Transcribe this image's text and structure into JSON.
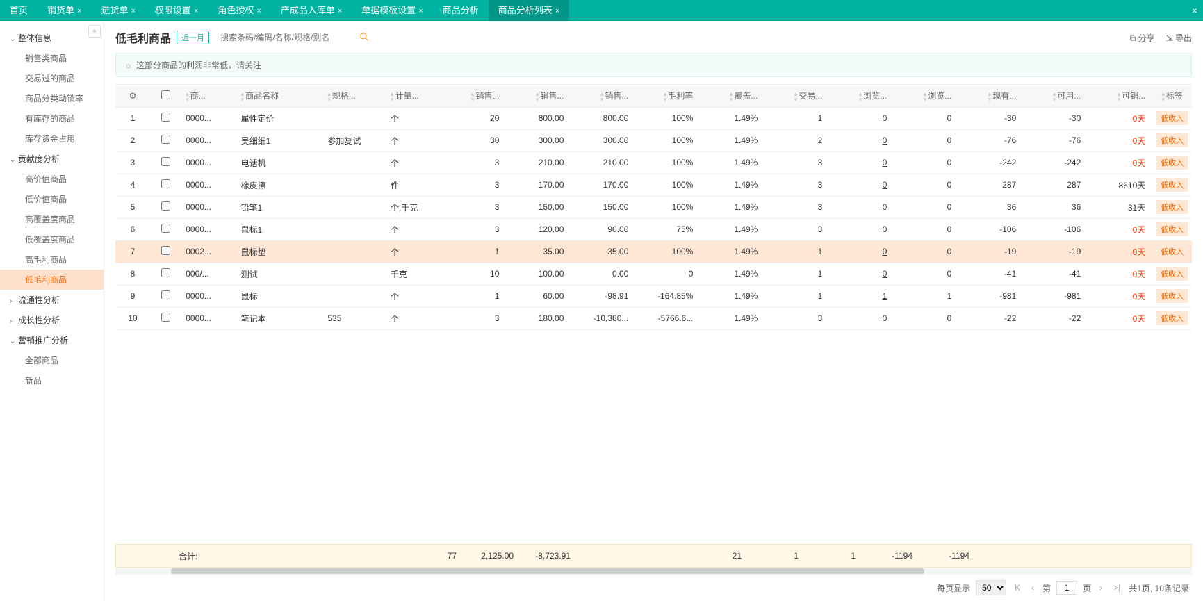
{
  "colors": {
    "primary": "#00b3a1",
    "primaryDark": "#009688",
    "accent": "#ff6600",
    "tagBg": "#ffe9d6",
    "red": "#ff3300"
  },
  "tabs": [
    {
      "label": "首页",
      "closable": false,
      "active": false
    },
    {
      "label": "销货单",
      "closable": true,
      "active": false
    },
    {
      "label": "进货单",
      "closable": true,
      "active": false
    },
    {
      "label": "权限设置",
      "closable": true,
      "active": false
    },
    {
      "label": "角色授权",
      "closable": true,
      "active": false
    },
    {
      "label": "产成品入库单",
      "closable": true,
      "active": false
    },
    {
      "label": "单据模板设置",
      "closable": true,
      "active": false
    },
    {
      "label": "商品分析",
      "closable": false,
      "active": false
    },
    {
      "label": "商品分析列表",
      "closable": true,
      "active": true
    }
  ],
  "sidebar": [
    {
      "title": "整体信息",
      "expanded": true,
      "items": [
        {
          "label": "销售类商品"
        },
        {
          "label": "交易过的商品"
        },
        {
          "label": "商品分类动销率"
        },
        {
          "label": "有库存的商品"
        },
        {
          "label": "库存资金占用"
        }
      ]
    },
    {
      "title": "贡献度分析",
      "expanded": true,
      "items": [
        {
          "label": "高价值商品"
        },
        {
          "label": "低价值商品"
        },
        {
          "label": "高覆盖度商品"
        },
        {
          "label": "低覆盖度商品"
        },
        {
          "label": "高毛利商品"
        },
        {
          "label": "低毛利商品",
          "active": true
        }
      ]
    },
    {
      "title": "流通性分析",
      "expanded": false,
      "items": []
    },
    {
      "title": "成长性分析",
      "expanded": false,
      "items": []
    },
    {
      "title": "营销推广分析",
      "expanded": true,
      "items": [
        {
          "label": "全部商品"
        },
        {
          "label": "新品"
        }
      ]
    }
  ],
  "header": {
    "title": "低毛利商品",
    "period": "近一月",
    "search_placeholder": "搜索条码/编码/名称/规格/别名",
    "share": "分享",
    "export": "导出"
  },
  "banner": "这部分商品的利润非常低，请关注",
  "columns": [
    "",
    "",
    "商...",
    "商品名称",
    "规格...",
    "计量...",
    "销售...",
    "销售...",
    "销售...",
    "毛利率",
    "覆盖...",
    "交易...",
    "浏览...",
    "浏览...",
    "现有...",
    "可用...",
    "可销...",
    "标签"
  ],
  "col_align": [
    "center",
    "center",
    "left",
    "left",
    "left",
    "left",
    "num",
    "num",
    "num",
    "num",
    "num",
    "num",
    "num",
    "num",
    "num",
    "num",
    "num",
    "center"
  ],
  "rows": [
    {
      "n": 1,
      "code": "0000...",
      "name": "属性定价",
      "spec": "",
      "unit": "个",
      "q": "20",
      "amt1": "800.00",
      "amt2": "800.00",
      "gm": "100%",
      "cov": "1.49%",
      "trx": "1",
      "view1": "0",
      "view2": "0",
      "stock": "-30",
      "avail": "-30",
      "days": "0天",
      "daysRed": true,
      "tag": "低收入"
    },
    {
      "n": 2,
      "code": "0000...",
      "name": "吴细细1",
      "spec": "参加复试",
      "unit": "个",
      "q": "30",
      "amt1": "300.00",
      "amt2": "300.00",
      "gm": "100%",
      "cov": "1.49%",
      "trx": "2",
      "view1": "0",
      "view2": "0",
      "stock": "-76",
      "avail": "-76",
      "days": "0天",
      "daysRed": true,
      "tag": "低收入"
    },
    {
      "n": 3,
      "code": "0000...",
      "name": "电话机",
      "spec": "",
      "unit": "个",
      "q": "3",
      "amt1": "210.00",
      "amt2": "210.00",
      "gm": "100%",
      "cov": "1.49%",
      "trx": "3",
      "view1": "0",
      "view2": "0",
      "stock": "-242",
      "avail": "-242",
      "days": "0天",
      "daysRed": true,
      "tag": "低收入"
    },
    {
      "n": 4,
      "code": "0000...",
      "name": "橡皮擦",
      "spec": "",
      "unit": "件",
      "q": "3",
      "amt1": "170.00",
      "amt2": "170.00",
      "gm": "100%",
      "cov": "1.49%",
      "trx": "3",
      "view1": "0",
      "view2": "0",
      "stock": "287",
      "avail": "287",
      "days": "8610天",
      "daysRed": false,
      "tag": "低收入"
    },
    {
      "n": 5,
      "code": "0000...",
      "name": "铅笔1",
      "spec": "",
      "unit": "个,千克",
      "q": "3",
      "amt1": "150.00",
      "amt2": "150.00",
      "gm": "100%",
      "cov": "1.49%",
      "trx": "3",
      "view1": "0",
      "view2": "0",
      "stock": "36",
      "avail": "36",
      "days": "31天",
      "daysRed": false,
      "tag": "低收入"
    },
    {
      "n": 6,
      "code": "0000...",
      "name": "鼠标1",
      "spec": "",
      "unit": "个",
      "q": "3",
      "amt1": "120.00",
      "amt2": "90.00",
      "gm": "75%",
      "cov": "1.49%",
      "trx": "3",
      "view1": "0",
      "view2": "0",
      "stock": "-106",
      "avail": "-106",
      "days": "0天",
      "daysRed": true,
      "tag": "低收入"
    },
    {
      "n": 7,
      "code": "0002...",
      "name": "鼠标垫",
      "spec": "",
      "unit": "个",
      "q": "1",
      "amt1": "35.00",
      "amt2": "35.00",
      "gm": "100%",
      "cov": "1.49%",
      "trx": "1",
      "view1": "0",
      "view2": "0",
      "stock": "-19",
      "avail": "-19",
      "days": "0天",
      "daysRed": true,
      "tag": "低收入",
      "hover": true
    },
    {
      "n": 8,
      "code": "000/...",
      "name": "测试",
      "spec": "",
      "unit": "千克",
      "q": "10",
      "amt1": "100.00",
      "amt2": "0.00",
      "gm": "0",
      "cov": "1.49%",
      "trx": "1",
      "view1": "0",
      "view2": "0",
      "stock": "-41",
      "avail": "-41",
      "days": "0天",
      "daysRed": true,
      "tag": "低收入"
    },
    {
      "n": 9,
      "code": "0000...",
      "name": "鼠标",
      "spec": "",
      "unit": "个",
      "q": "1",
      "amt1": "60.00",
      "amt2": "-98.91",
      "gm": "-164.85%",
      "cov": "1.49%",
      "trx": "1",
      "view1": "1",
      "view2": "1",
      "stock": "-981",
      "avail": "-981",
      "days": "0天",
      "daysRed": true,
      "tag": "低收入"
    },
    {
      "n": 10,
      "code": "0000...",
      "name": "笔记本",
      "spec": "535",
      "unit": "个",
      "q": "3",
      "amt1": "180.00",
      "amt2": "-10,380...",
      "gm": "-5766.6...",
      "cov": "1.49%",
      "trx": "3",
      "view1": "0",
      "view2": "0",
      "stock": "-22",
      "avail": "-22",
      "days": "0天",
      "daysRed": true,
      "tag": "低收入"
    }
  ],
  "totals": {
    "label": "合计:",
    "q": "77",
    "amt1": "2,125.00",
    "amt2": "-8,723.91",
    "trx": "21",
    "view1": "1",
    "view2": "1",
    "stock": "-1194",
    "avail": "-1194"
  },
  "pager": {
    "perPageLabel": "每页显示",
    "perPage": "50",
    "pageLabelPre": "第",
    "page": "1",
    "pageLabelPost": "页",
    "summary": "共1页, 10条记录"
  }
}
